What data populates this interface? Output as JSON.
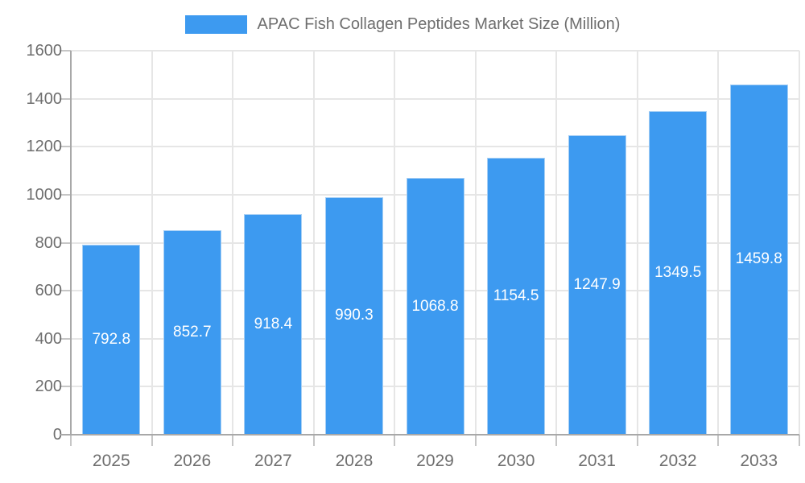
{
  "legend": {
    "label": "APAC Fish Collagen Peptides Market Size (Million)"
  },
  "colors": {
    "bar": "#3d9af0",
    "bar_border": "#a6cff5",
    "grid": "#e6e6e6",
    "tick": "#c6c6c6",
    "axis": "#a8a8a8",
    "label_text": "#6e6e6e",
    "value_text": "#ffffff",
    "background": "#ffffff"
  },
  "chart_data": {
    "type": "bar",
    "title": "APAC Fish Collagen Peptides Market Size (Million)",
    "categories": [
      "2025",
      "2026",
      "2027",
      "2028",
      "2029",
      "2030",
      "2031",
      "2032",
      "2033"
    ],
    "values": [
      792.8,
      852.7,
      918.4,
      990.3,
      1068.8,
      1154.5,
      1247.9,
      1349.5,
      1459.8
    ],
    "value_labels": [
      "792.8",
      "852.7",
      "918.4",
      "990.3",
      "1068.8",
      "1154.5",
      "1247.9",
      "1349.5",
      "1459.8"
    ],
    "xlabel": "",
    "ylabel": "",
    "ylim": [
      0,
      1600
    ],
    "yticks": [
      0,
      200,
      400,
      600,
      800,
      1000,
      1200,
      1400,
      1600
    ],
    "grid": true,
    "legend_position": "top",
    "value_label_position": "inside-center"
  }
}
